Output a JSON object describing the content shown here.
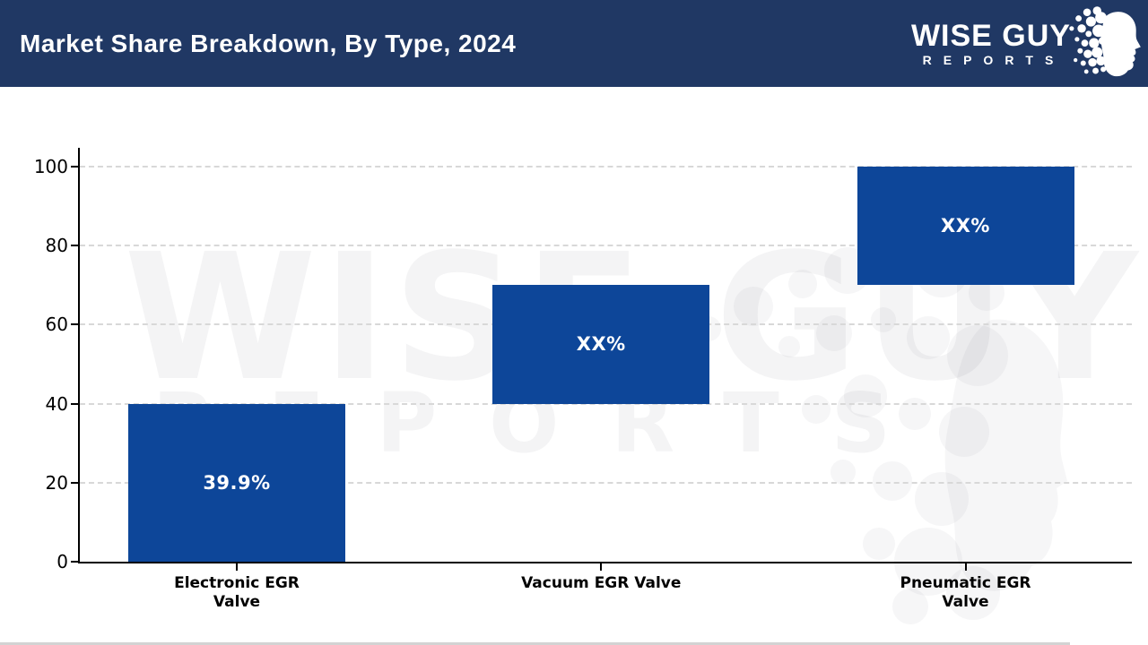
{
  "header": {
    "title": "Market Share Breakdown, By Type, 2024",
    "bg_color": "#203864",
    "logo": {
      "line1": "WISE GUY",
      "line2": "REPORTS",
      "icon": "dotted-face-profile-icon",
      "color": "#ffffff"
    }
  },
  "watermark": {
    "line1": "WISE GUY",
    "line2": "REPORTS",
    "icon": "dotted-face-profile-watermark"
  },
  "chart_data": {
    "type": "bar",
    "subtype": "floating-segment-bars",
    "title": "Market Share Breakdown, By Type, 2024",
    "categories": [
      [
        "Electronic EGR",
        "Valve"
      ],
      [
        "Vacuum EGR Valve"
      ],
      [
        "Pneumatic EGR",
        "Valve"
      ]
    ],
    "bars": [
      {
        "category": "Electronic EGR Valve",
        "from": 0,
        "to": 40,
        "label": "39.9%"
      },
      {
        "category": "Vacuum EGR Valve",
        "from": 40,
        "to": 70,
        "label": "XX%"
      },
      {
        "category": "Pneumatic EGR Valve",
        "from": 70,
        "to": 100,
        "label": "XX%"
      }
    ],
    "yticks": [
      0,
      20,
      40,
      60,
      80,
      100
    ],
    "ylim": [
      0,
      105
    ],
    "xlabel": "",
    "ylabel": "",
    "grid": "horizontal-dashed",
    "legend": "none",
    "bar_color": "#0d4699",
    "bar_label_color": "#ffffff",
    "gridline_color": "#d8d8d8",
    "axis_color": "#000000"
  },
  "footer": {
    "strip_color": "#d3d3d3"
  }
}
